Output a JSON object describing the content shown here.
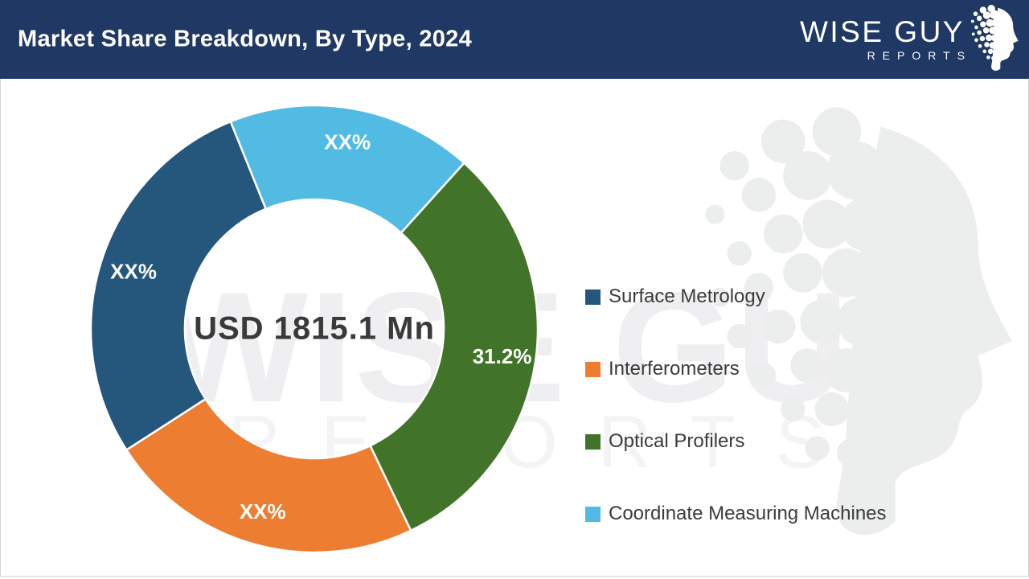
{
  "header": {
    "title": "Market Share Breakdown, By Type, 2024",
    "bg": "#1f3864",
    "logo": {
      "name": "WISE GUY",
      "subname": "REPORTS"
    }
  },
  "watermark": {
    "line1": "WISE GUY",
    "line2": "REPORTS"
  },
  "chart_data": {
    "type": "pie",
    "donut": true,
    "title": "Market Share Breakdown, By Type, 2024",
    "center_label": "USD 1815.1 Mn",
    "categories": [
      "Surface Metrology",
      "Interferometers",
      "Optical Profilers",
      "Coordinate Measuring Machines"
    ],
    "values": [
      28,
      23,
      31.2,
      17.8
    ],
    "labels": [
      "XX%",
      "XX%",
      "31.2%",
      "XX%"
    ],
    "colors": [
      "#25567c",
      "#ed7d31",
      "#417428",
      "#52bbe3"
    ],
    "start_angle": 112,
    "direction": "counterclockwise",
    "inner_radius_ratio": 0.58,
    "legend_position": "right"
  },
  "legend": {
    "items": [
      {
        "label": "Surface Metrology",
        "color": "#25567c"
      },
      {
        "label": "Interferometers",
        "color": "#ed7d31"
      },
      {
        "label": "Optical Profilers",
        "color": "#417428"
      },
      {
        "label": "Coordinate Measuring Machines",
        "color": "#52bbe3"
      }
    ]
  }
}
